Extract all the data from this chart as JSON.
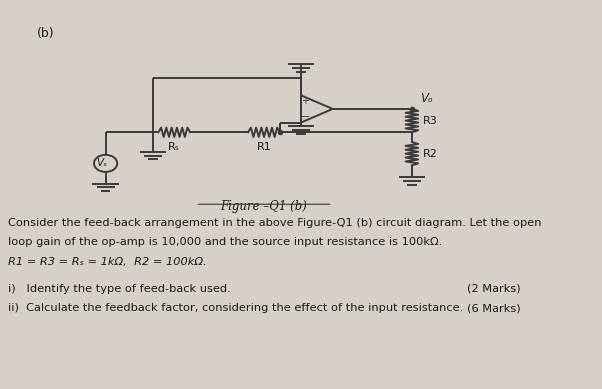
{
  "bg_color": "#d6d0c8",
  "line_color": "#3a3a3a",
  "text_color": "#1a1a1a",
  "label_b": "(b)",
  "fig_label": "Figure –Q1 (b)",
  "description_line1": "Consider the feed-back arrangement in the above Figure-Q1 (b) circuit diagram. Let the open",
  "description_line2": "loop gain of the op-amp is 10,000 and the source input resistance is 100kΩ.",
  "description_line3": "R1 = R3 = Rₛ = 1kΩ,  R2 = 100kΩ.",
  "item_i": "i)   Identify the type of feed-back used.",
  "item_ii": "ii)  Calculate the feedback factor, considering the effect of the input resistance.",
  "marks_i": "(2 Marks)",
  "marks_ii": "(6 Marks)"
}
